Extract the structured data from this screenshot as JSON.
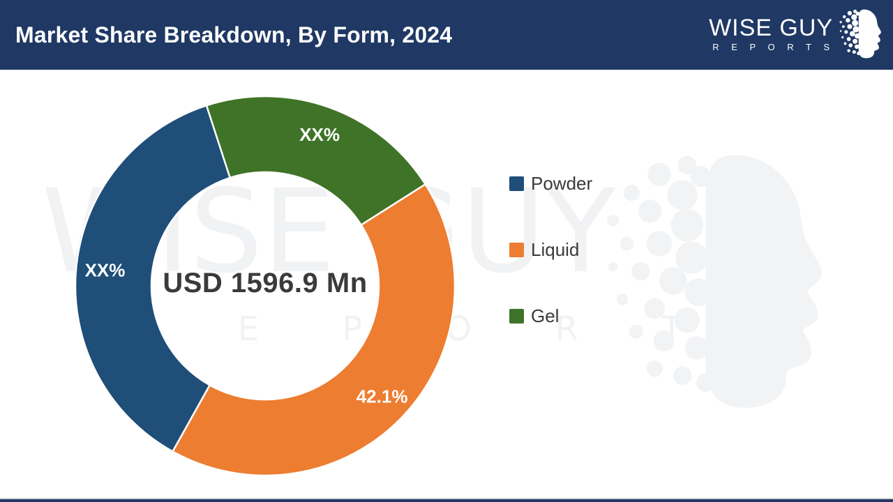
{
  "header": {
    "title": "Market Share Breakdown, By Form, 2024",
    "logo": {
      "line1": "WISE GUY",
      "line2": "R E P O R T S"
    }
  },
  "watermark": {
    "line1": "WISE GUY",
    "line2": "R E P O R T S"
  },
  "chart_data": {
    "type": "donut",
    "title": "Market Share Breakdown, By Form, 2024",
    "center_label": "USD 1596.9 Mn",
    "segments": [
      {
        "label": "Powder",
        "value_pct": 36.9,
        "display_label": "XX%",
        "color": "#1F4E78"
      },
      {
        "label": "Liquid",
        "value_pct": 42.1,
        "display_label": "42.1%",
        "color": "#ED7D31"
      },
      {
        "label": "Gel",
        "value_pct": 21.0,
        "display_label": "XX%",
        "color": "#3F7327"
      }
    ],
    "clockwise_order": [
      "Gel",
      "Liquid",
      "Powder"
    ],
    "start_angle_deg": -18,
    "legend_position": "right",
    "legend_items": [
      "Powder",
      "Liquid",
      "Gel"
    ]
  },
  "colors": {
    "header_bg": "#1F3864",
    "footer_bar": "#1F3864",
    "hairline": "#D9D9D9",
    "text_dark": "#3A3A3A",
    "watermark": "#F1F2F4"
  }
}
